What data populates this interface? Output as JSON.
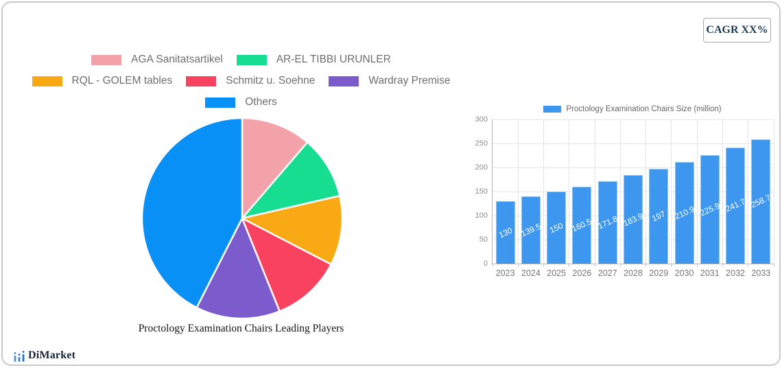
{
  "badge": {
    "label": "CAGR XX%"
  },
  "brand": {
    "name": "DiMarket"
  },
  "colors": {
    "accent_navy": "#1d3a57",
    "bar_blue": "#3e97ee",
    "legend_text": "#6e6e6e"
  },
  "chart_data": [
    {
      "type": "pie",
      "title": "Proctology Examination Chairs Leading Players",
      "labels": [
        "AGA Sanitatsartikel",
        "AR-EL TIBBI URUNLER",
        "RQL - GOLEM tables",
        "Schmitz u. Soehne",
        "Wardray Premise",
        "Others"
      ],
      "values": [
        11.3,
        10.1,
        11.2,
        11.3,
        13.6,
        42.5
      ],
      "colors": [
        "#f2a2a8",
        "#16dd90",
        "#f8a913",
        "#f94260",
        "#7c5ccd",
        "#0990f7"
      ],
      "legend_rows": [
        [
          0,
          1
        ],
        [
          2,
          3,
          4
        ],
        [
          5
        ]
      ],
      "legend_position": "top",
      "start_angle_deg": 0,
      "direction": "clockwise"
    },
    {
      "type": "bar",
      "legend": "Proctology Examination Chairs Size (million)",
      "categories": [
        "2023",
        "2024",
        "2025",
        "2026",
        "2027",
        "2028",
        "2029",
        "2030",
        "2031",
        "2032",
        "2033"
      ],
      "values": [
        130,
        139.5,
        150,
        160.5,
        171.8,
        183.9,
        197,
        210.9,
        225.9,
        241.7,
        258.7
      ],
      "y_ticks": [
        0,
        50,
        100,
        150,
        200,
        250,
        300
      ],
      "ylim": [
        0,
        300
      ],
      "bar_color": "#3e97ee",
      "grid": true,
      "value_label_color": "#ffffff"
    }
  ]
}
